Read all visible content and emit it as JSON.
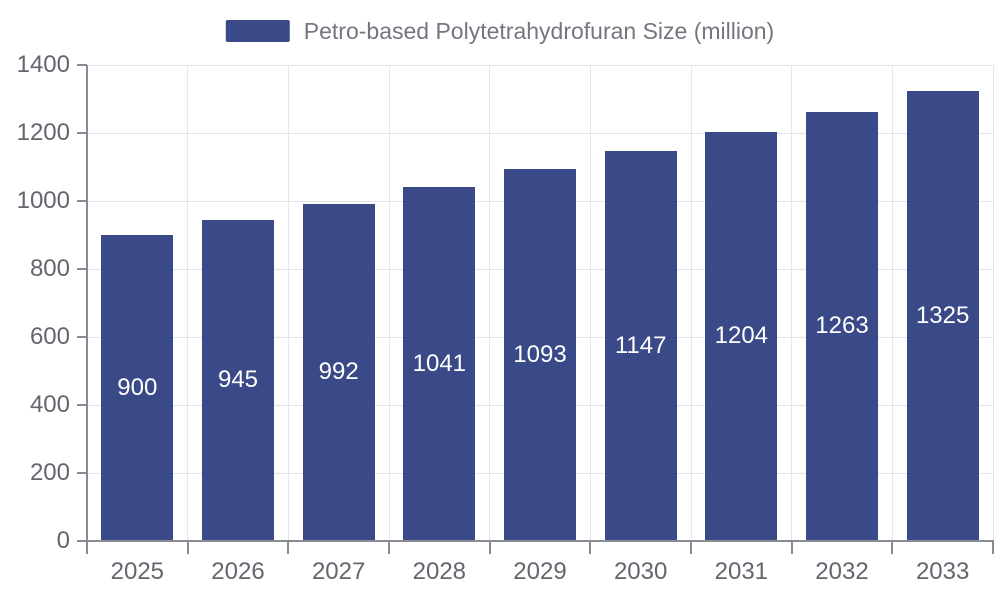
{
  "chart_data": {
    "type": "bar",
    "title": "",
    "legend": {
      "label": "Petro-based Polytetrahydrofuran Size (million)",
      "position": "top-center"
    },
    "categories": [
      "2025",
      "2026",
      "2027",
      "2028",
      "2029",
      "2030",
      "2031",
      "2032",
      "2033"
    ],
    "series": [
      {
        "name": "Petro-based Polytetrahydrofuran Size (million)",
        "values": [
          900,
          945,
          992,
          1041,
          1093,
          1147,
          1204,
          1263,
          1325
        ]
      }
    ],
    "xlabel": "",
    "ylabel": "",
    "ylim": [
      0,
      1400
    ],
    "yticks": [
      "0",
      "200",
      "400",
      "600",
      "800",
      "1000",
      "1200",
      "1400"
    ],
    "grid": "on",
    "bar_value_labels": "inside-center"
  },
  "colors": {
    "bar": "#3A4987",
    "bar_label": "#FFFFFF",
    "axis": "#888B92",
    "tick_label": "#63666E",
    "legend_text": "#74777F",
    "grid_horizontal": "#E0E3ED",
    "grid_vertical": "#E5E6E9",
    "background": "#FFFFFF"
  }
}
